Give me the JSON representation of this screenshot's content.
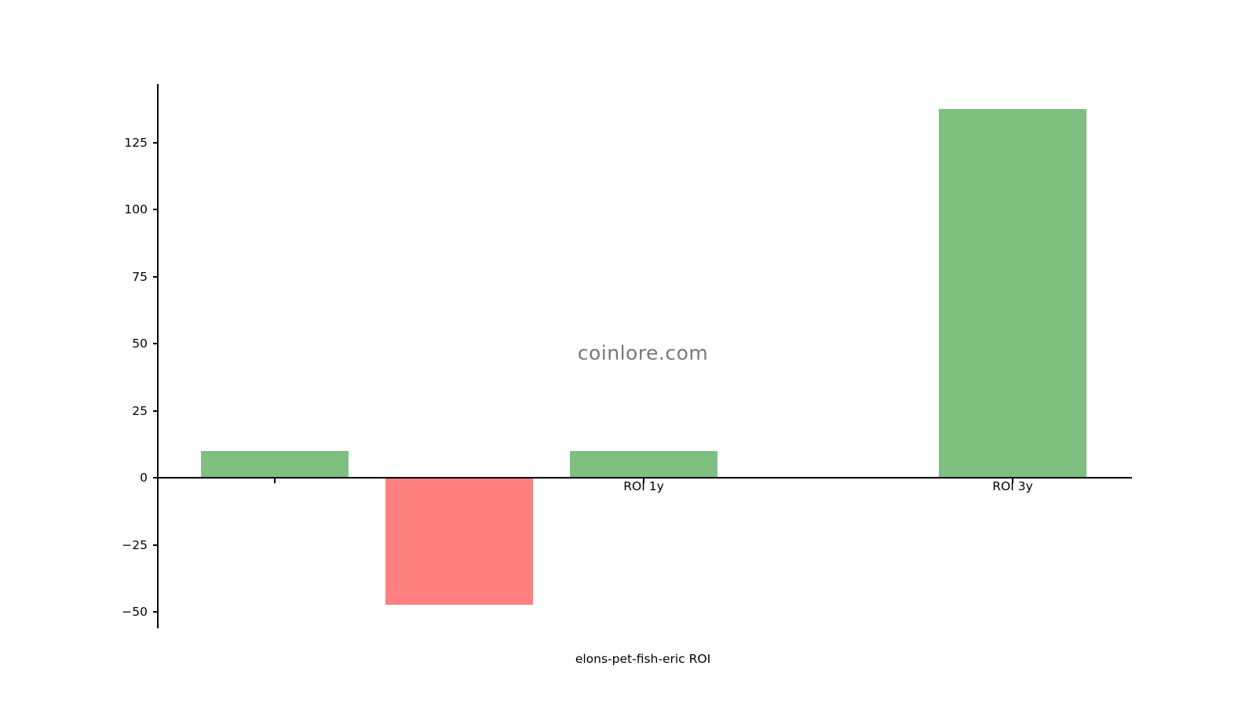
{
  "watermark_text": "coinlore.com",
  "chart_data": {
    "type": "bar",
    "title": "",
    "xlabel": "elons-pet-fish-eric ROI",
    "ylabel": "",
    "watermark": "coinlore.com",
    "categories": [
      "",
      "",
      "ROI 1y",
      "",
      "ROI 3y"
    ],
    "values": [
      10,
      -47,
      10,
      null,
      137.4
    ],
    "positive_color": "#7fbf7f",
    "negative_color": "#ff8080",
    "axis_color": "#000000",
    "text_color": "#000000",
    "watermark_color": "#787878",
    "background_color": "#ffffff",
    "grid": false,
    "legend_position": "none",
    "ylim": [
      -56,
      147
    ],
    "yticks": [
      {
        "value": 125,
        "label": "125"
      },
      {
        "value": 100,
        "label": "100"
      },
      {
        "value": 75,
        "label": "75"
      },
      {
        "value": 50,
        "label": "50"
      },
      {
        "value": 25,
        "label": "25"
      },
      {
        "value": 0,
        "label": "0"
      },
      {
        "value": -25,
        "label": "−25"
      },
      {
        "value": -50,
        "label": "−50"
      }
    ],
    "xticks": [
      {
        "position": 0,
        "label": ""
      },
      {
        "position": 2,
        "label": "ROI 1y"
      },
      {
        "position": 4,
        "label": "ROI 3y"
      }
    ]
  }
}
